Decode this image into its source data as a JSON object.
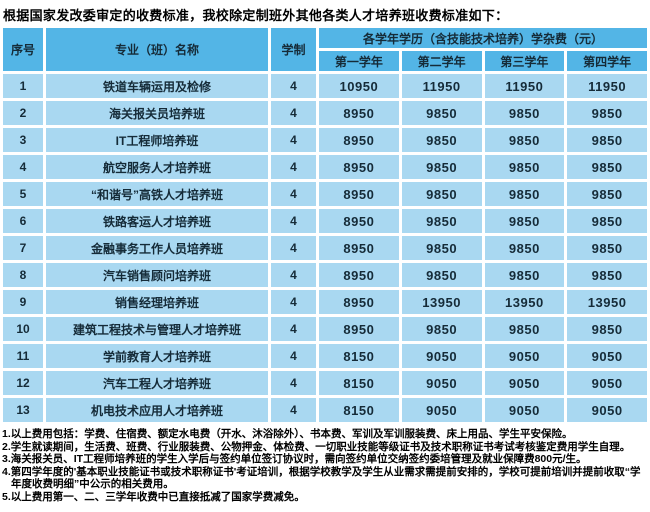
{
  "title": "根据国家发改委审定的收费标准，我校除定制班外其他各类人才培养班收费标准如下：",
  "colors": {
    "header_bg": "#53b5e6",
    "cell_bg": "#a9d8f1",
    "grid": "#ffffff",
    "text": "#152b38"
  },
  "table": {
    "headers": {
      "index": "序号",
      "major": "专业（班）名称",
      "duration": "学制",
      "fees_group": "各学年学历（含技能技术培养）学杂费（元）",
      "years": [
        "第一学年",
        "第二学年",
        "第三学年",
        "第四学年"
      ]
    },
    "rows": [
      {
        "no": "1",
        "major": "铁道车辆运用及检修",
        "duration": "4",
        "fees": [
          "10950",
          "11950",
          "11950",
          "11950"
        ]
      },
      {
        "no": "2",
        "major": "海关报关员培养班",
        "duration": "4",
        "fees": [
          "8950",
          "9850",
          "9850",
          "9850"
        ]
      },
      {
        "no": "3",
        "major": "IT工程师培养班",
        "duration": "4",
        "fees": [
          "8950",
          "9850",
          "9850",
          "9850"
        ]
      },
      {
        "no": "4",
        "major": "航空服务人才培养班",
        "duration": "4",
        "fees": [
          "8950",
          "9850",
          "9850",
          "9850"
        ]
      },
      {
        "no": "5",
        "major": "“和谐号”高铁人才培养班",
        "duration": "4",
        "fees": [
          "8950",
          "9850",
          "9850",
          "9850"
        ]
      },
      {
        "no": "6",
        "major": "铁路客运人才培养班",
        "duration": "4",
        "fees": [
          "8950",
          "9850",
          "9850",
          "9850"
        ]
      },
      {
        "no": "7",
        "major": "金融事务工作人员培养班",
        "duration": "4",
        "fees": [
          "8950",
          "9850",
          "9850",
          "9850"
        ]
      },
      {
        "no": "8",
        "major": "汽车销售顾问培养班",
        "duration": "4",
        "fees": [
          "8950",
          "9850",
          "9850",
          "9850"
        ]
      },
      {
        "no": "9",
        "major": "销售经理培养班",
        "duration": "4",
        "fees": [
          "8950",
          "13950",
          "13950",
          "13950"
        ]
      },
      {
        "no": "10",
        "major": "建筑工程技术与管理人才培养班",
        "duration": "4",
        "fees": [
          "8950",
          "9850",
          "9850",
          "9850"
        ]
      },
      {
        "no": "11",
        "major": "学前教育人才培养班",
        "duration": "4",
        "fees": [
          "8150",
          "9050",
          "9050",
          "9050"
        ]
      },
      {
        "no": "12",
        "major": "汽车工程人才培养班",
        "duration": "4",
        "fees": [
          "8150",
          "9050",
          "9050",
          "9050"
        ]
      },
      {
        "no": "13",
        "major": "机电技术应用人才培养班",
        "duration": "4",
        "fees": [
          "8150",
          "9050",
          "9050",
          "9050"
        ]
      }
    ]
  },
  "notes": [
    "1.以上费用包括：学费、住宿费、额定水电费（开水、沐浴除外）、书本费、军训及军训服装费、床上用品、学生平安保险。",
    "2.学生就读期间，生活费、班费、行业服装费、公物押金、体检费、一切职业技能等级证书及技术职称证书考试考核鉴定费用学生自理。",
    "3.海关报关员、IT工程师培养班的学生入学后与签约单位签订协议时，需向签约单位交纳签约委培管理及就业保障费800元/生。",
    "4.第四学年度的'基本职业技能证书或技术职称证书'考证培训，根据学校教学及学生从业需求需提前安排的，学校可提前培训并提前收取“学年度收费明细”中公示的相关费用。",
    "5.以上费用第一、二、三学年收费中已直接抵减了国家学费减免。"
  ]
}
